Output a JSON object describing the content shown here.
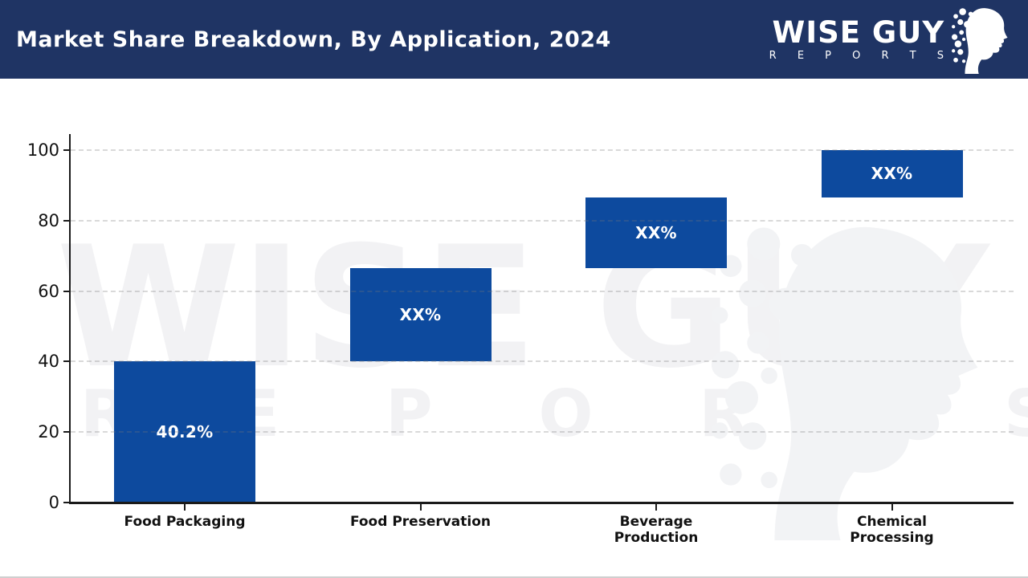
{
  "header": {
    "title": "Market Share Breakdown, By Application, 2024",
    "logo": {
      "line1": "WISE GUY",
      "line2": "R E P O R T S",
      "icon": "dotted-head-profile"
    }
  },
  "watermark": {
    "line1": "WISE GUY",
    "line2": "R E P O R T S",
    "icon": "dotted-head-profile"
  },
  "colors": {
    "header_bg": "#1f3464",
    "bar": "#0d4a9e",
    "bar_label": "#ffffff",
    "axis": "#1a1a1a",
    "grid": "#d8d8d8",
    "watermark": "#f2f2f4"
  },
  "chart_data": {
    "type": "bar",
    "subtype": "waterfall",
    "title": "Market Share Breakdown, By Application, 2024",
    "categories": [
      "Food Packaging",
      "Food Preservation",
      "Beverage Production",
      "Chemical Processing"
    ],
    "tick_labels": [
      "Food Packaging",
      "Food Preservation",
      "Beverage\nProduction",
      "Chemical\nProcessing"
    ],
    "series": [
      {
        "name": "Market share (%)",
        "segments": [
          {
            "category": "Food Packaging",
            "start": 0,
            "end": 40.2,
            "label": "40.2%"
          },
          {
            "category": "Food Preservation",
            "start": 40.2,
            "end": 66.6,
            "label": "XX%"
          },
          {
            "category": "Beverage Production",
            "start": 66.6,
            "end": 86.6,
            "label": "XX%"
          },
          {
            "category": "Chemical Processing",
            "start": 86.6,
            "end": 100,
            "label": "XX%"
          }
        ]
      }
    ],
    "xlabel": "",
    "ylabel": "",
    "ylim": [
      0,
      100
    ],
    "yticks": [
      0,
      20,
      40,
      60,
      80,
      100
    ],
    "grid": {
      "horizontal": true,
      "style": "dashed"
    },
    "legend": null,
    "bar_color": "#0d4a9e",
    "bar_label_color": "#ffffff"
  }
}
